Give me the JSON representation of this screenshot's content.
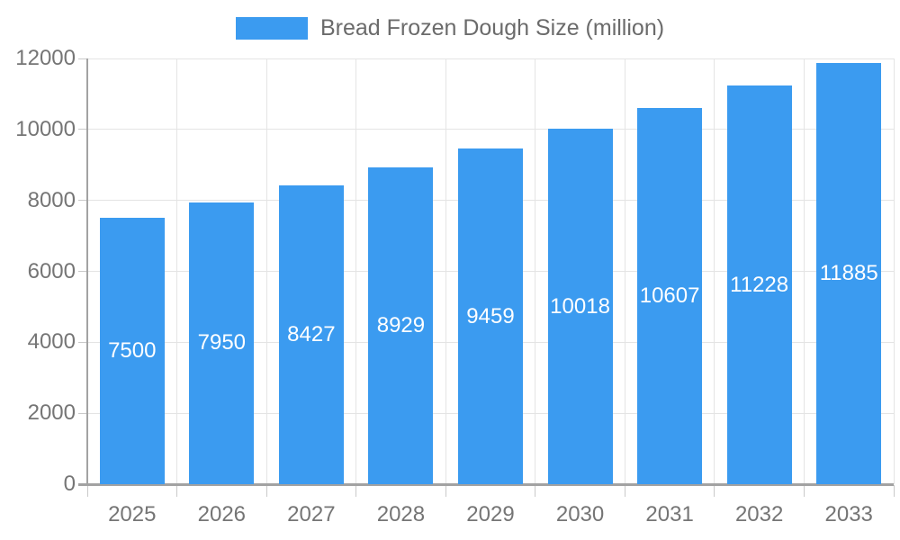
{
  "chart_data": {
    "type": "bar",
    "title": "Bread Frozen Dough Size (million)",
    "categories": [
      "2025",
      "2026",
      "2027",
      "2028",
      "2029",
      "2030",
      "2031",
      "2032",
      "2033"
    ],
    "values": [
      7500,
      7950,
      8427,
      8929,
      9459,
      10018,
      10607,
      11228,
      11885
    ],
    "xlabel": "",
    "ylabel": "",
    "ylim": [
      0,
      12000
    ],
    "yticks": [
      0,
      2000,
      4000,
      6000,
      8000,
      10000,
      12000
    ],
    "grid": true,
    "legend_position": "top",
    "value_labels": "centered-in-bar",
    "colors": {
      "bar": "#3b9bf0",
      "value_label": "#ffffff",
      "axis_label": "#757575",
      "legend_text": "#6b6b6b",
      "gridline": "#e4e4e4",
      "axis_line": "#a2a2a2",
      "tick": "#c9c9c9"
    }
  }
}
